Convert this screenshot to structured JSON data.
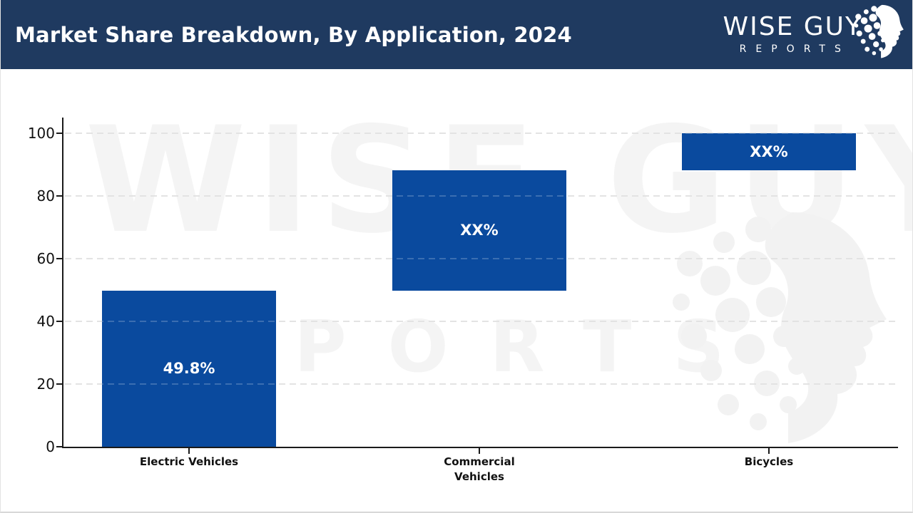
{
  "header": {
    "title": "Market Share Breakdown, By Application, 2024",
    "bg_color": "#1f3a60",
    "logo": {
      "name": "WISE GUY",
      "subname": "REPORTS"
    }
  },
  "watermark": {
    "name": "WISE GUY",
    "subname": "REPORTS"
  },
  "chart_data": {
    "type": "bar",
    "subtype": "floating_segment_breakdown",
    "title": "Market Share Breakdown, By Application, 2024",
    "categories": [
      "Electric Vehicles",
      "Commercial\nVehicles",
      "Bicycles"
    ],
    "segments": [
      {
        "category": "Electric Vehicles",
        "display_label": "49.8%",
        "start": 0,
        "end": 49.8
      },
      {
        "category": "Commercial Vehicles",
        "display_label": "XX%",
        "start": 49.8,
        "end": 88.2
      },
      {
        "category": "Bicycles",
        "display_label": "XX%",
        "start": 88.2,
        "end": 100
      }
    ],
    "y_ticks": [
      0,
      20,
      40,
      60,
      80,
      100
    ],
    "ylim": [
      0,
      105
    ],
    "xlabel": "",
    "ylabel": "",
    "grid": {
      "axis": "y",
      "style": "dashed",
      "color": "#dcdcdc"
    },
    "legend": "none",
    "bar_color": "#0a4a9e",
    "bar_label_color": "#ffffff",
    "axis_color": "#1a1a1a"
  }
}
